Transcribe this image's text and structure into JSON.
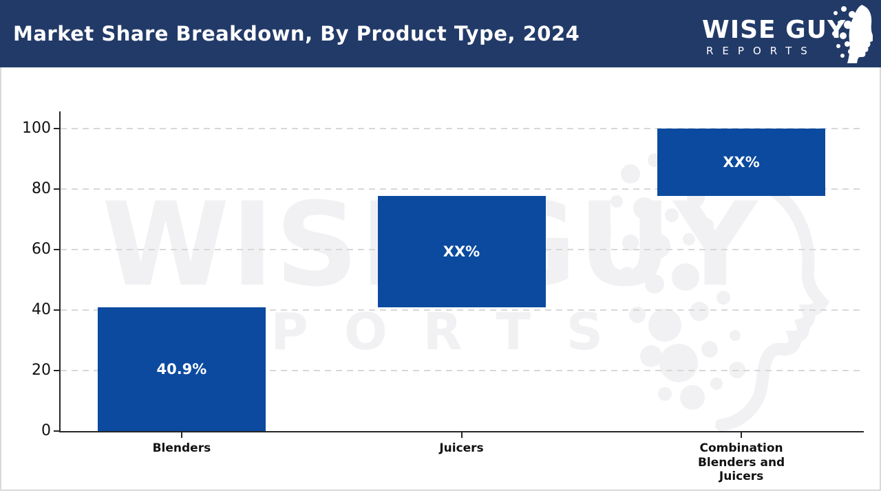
{
  "header": {
    "title": "Market Share Breakdown, By Product Type, 2024",
    "logo": {
      "brand_line1": "WISE GUY",
      "brand_line2": "REPORTS"
    }
  },
  "watermark": {
    "line1": "WISE GUY",
    "line2": "REPORTS"
  },
  "colors": {
    "header_bg": "#223A68",
    "title_color": "#FFFFFF",
    "bar": "#0B4A9F",
    "bar_label": "#FFFFFF",
    "grid": "#D7D7D7",
    "axis": "#262626",
    "watermark": "#F1F1F3",
    "border": "#D9D9D9"
  },
  "chart_data": {
    "type": "bar",
    "subtype": "waterfall",
    "title": "Market Share Breakdown, By Product Type, 2024",
    "categories": [
      "Blenders",
      "Juicers",
      "Combination Blenders and Juicers"
    ],
    "category_display": [
      "Blenders",
      "Juicers",
      "Combination\nBlenders and\nJuicers"
    ],
    "bars": [
      {
        "category": "Blenders",
        "start": 0,
        "end": 40.9,
        "label": "40.9%"
      },
      {
        "category": "Juicers",
        "start": 40.9,
        "end": 77.7,
        "label": "XX%"
      },
      {
        "category": "Combination Blenders and Juicers",
        "start": 77.7,
        "end": 100,
        "label": "XX%"
      }
    ],
    "yticks": [
      0,
      20,
      40,
      60,
      80,
      100
    ],
    "ylim": [
      0,
      105
    ],
    "xlabel": "",
    "ylabel": "",
    "grid": "dashed-horizontal",
    "legend": null
  }
}
